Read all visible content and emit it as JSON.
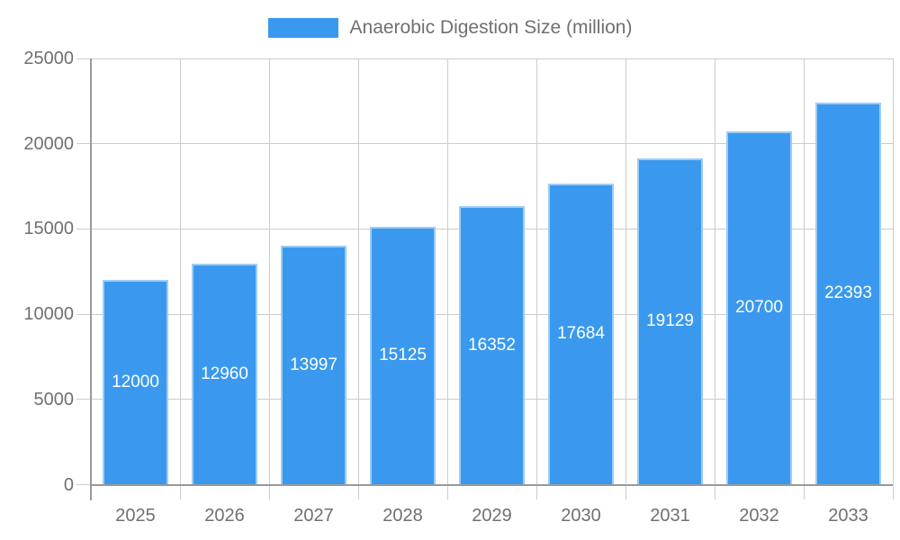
{
  "chart_data": {
    "type": "bar",
    "title": "Anaerobic Digestion Size (million)",
    "series_name": "Anaerobic Digestion Size (million)",
    "categories": [
      "2025",
      "2026",
      "2027",
      "2028",
      "2029",
      "2030",
      "2031",
      "2032",
      "2033"
    ],
    "values": [
      12000,
      12960,
      13997,
      15125,
      16352,
      17684,
      19129,
      20700,
      22393
    ],
    "value_labels": [
      "12000",
      "12960",
      "13997",
      "15125",
      "16352",
      "17684",
      "19129",
      "20700",
      "22393"
    ],
    "xlabel": "",
    "ylabel": "",
    "ylim": [
      0,
      25000
    ],
    "yticks": [
      0,
      5000,
      10000,
      15000,
      20000,
      25000
    ],
    "ytick_labels": [
      "0",
      "5000",
      "10000",
      "15000",
      "20000",
      "25000"
    ],
    "grid": true,
    "legend_position": "top-center",
    "colors": {
      "bar": "#3a99ee",
      "grid": "#cccccc",
      "axis": "#999999",
      "text": "#707070",
      "value_label": "#ffffff",
      "background": "#ffffff"
    }
  }
}
